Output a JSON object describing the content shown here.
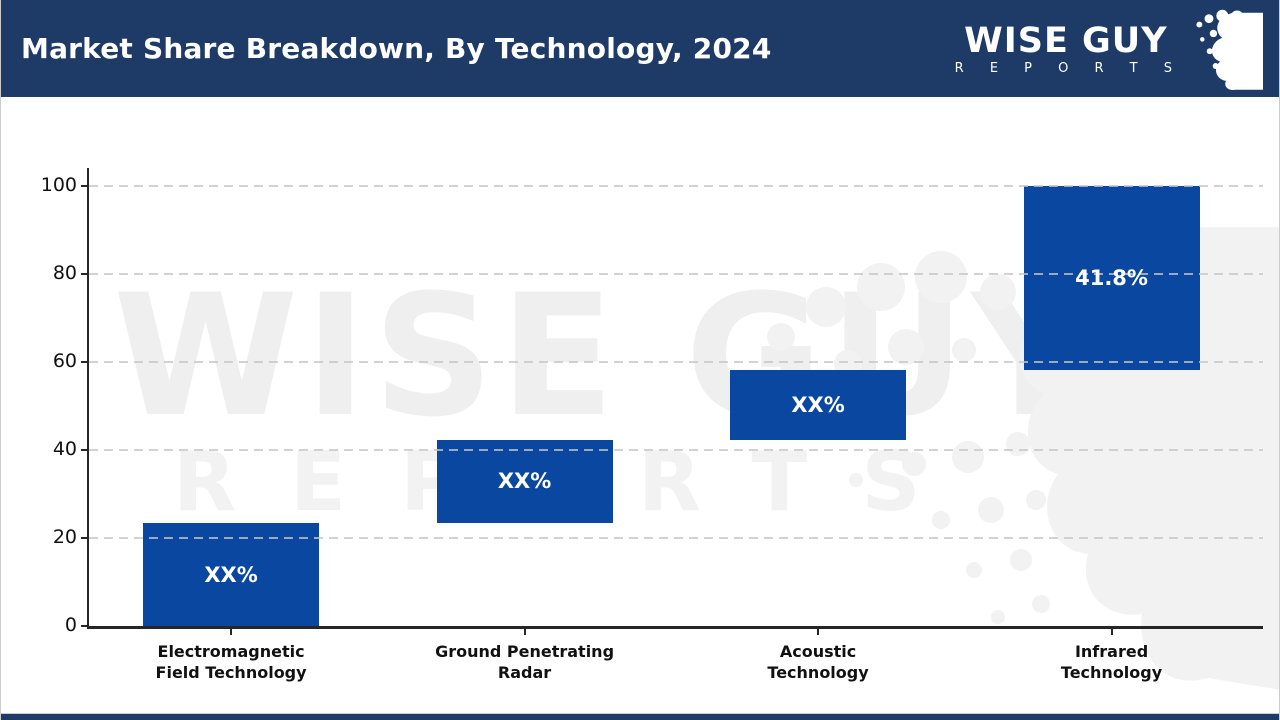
{
  "header": {
    "title": "Market Share Breakdown, By Technology, 2024",
    "logo": {
      "brand_line1": "WISE GUY",
      "brand_line2": "R E P O R T S"
    }
  },
  "watermark": {
    "line1": "WISE GUY",
    "line2": "REPORTS"
  },
  "chart_data": {
    "type": "bar",
    "subtype": "waterfall",
    "title": "Market Share Breakdown, By Technology, 2024",
    "xlabel": "",
    "ylabel": "",
    "ylim": [
      0,
      100
    ],
    "yticks": [
      0,
      20,
      40,
      60,
      80,
      100
    ],
    "grid": "horizontal-dashed",
    "legend": "none",
    "categories": [
      [
        "Electromagnetic",
        "Field Technology"
      ],
      [
        "Ground Penetrating",
        "Radar"
      ],
      [
        "Acoustic",
        "Technology"
      ],
      [
        "Infrared",
        "Technology"
      ]
    ],
    "segments": [
      {
        "category": "Electromagnetic Field Technology",
        "label": "XX%",
        "start": 0,
        "end": 23.4
      },
      {
        "category": "Ground Penetrating Radar",
        "label": "XX%",
        "start": 23.4,
        "end": 42.3
      },
      {
        "category": "Acoustic Technology",
        "label": "XX%",
        "start": 42.3,
        "end": 58.2
      },
      {
        "category": "Infrared Technology",
        "label": "41.8%",
        "start": 58.2,
        "end": 100
      }
    ]
  },
  "colors": {
    "header_bg": "#1e3a66",
    "footer_bg": "#1e3a66",
    "bar": "#0a47a0",
    "bar_label": "#ffffff",
    "axis": "#262626",
    "gridline": "#c6c6c6",
    "watermark": "#f0f0f0"
  }
}
